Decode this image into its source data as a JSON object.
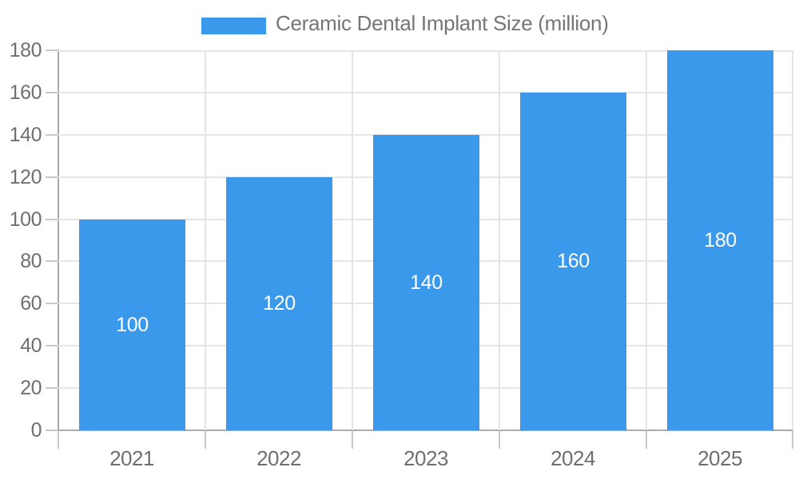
{
  "chart_data": {
    "type": "bar",
    "title": "Ceramic Dental Implant Size (million)",
    "categories": [
      "2021",
      "2022",
      "2023",
      "2024",
      "2025"
    ],
    "series": [
      {
        "name": "Ceramic Dental Implant Size (million)",
        "values": [
          100,
          120,
          140,
          160,
          180
        ],
        "color": "#3b99ec"
      }
    ],
    "data_labels": {
      "show": true,
      "position": "inside-center",
      "color": "#ffffff",
      "values": [
        "100",
        "120",
        "140",
        "160",
        "180"
      ]
    },
    "xlabel": "",
    "ylabel": "",
    "ylim": [
      0,
      180
    ],
    "yticks": [
      0,
      20,
      40,
      60,
      80,
      100,
      120,
      140,
      160,
      180
    ],
    "legend": {
      "position": "top-center",
      "swatch_color": "#3b99ec",
      "label": "Ceramic Dental Implant Size (million)"
    },
    "grid": {
      "horizontal_gridlines": true,
      "vertical_category_separators": true,
      "gridline_color": "#e6e6e6"
    },
    "style": {
      "background_color": "#ffffff",
      "axis_line_color": "#aaaaaa",
      "tick_color": "#c9c9c9",
      "axis_text_color": "#6f6f6f",
      "legend_text_color": "#757575"
    }
  }
}
